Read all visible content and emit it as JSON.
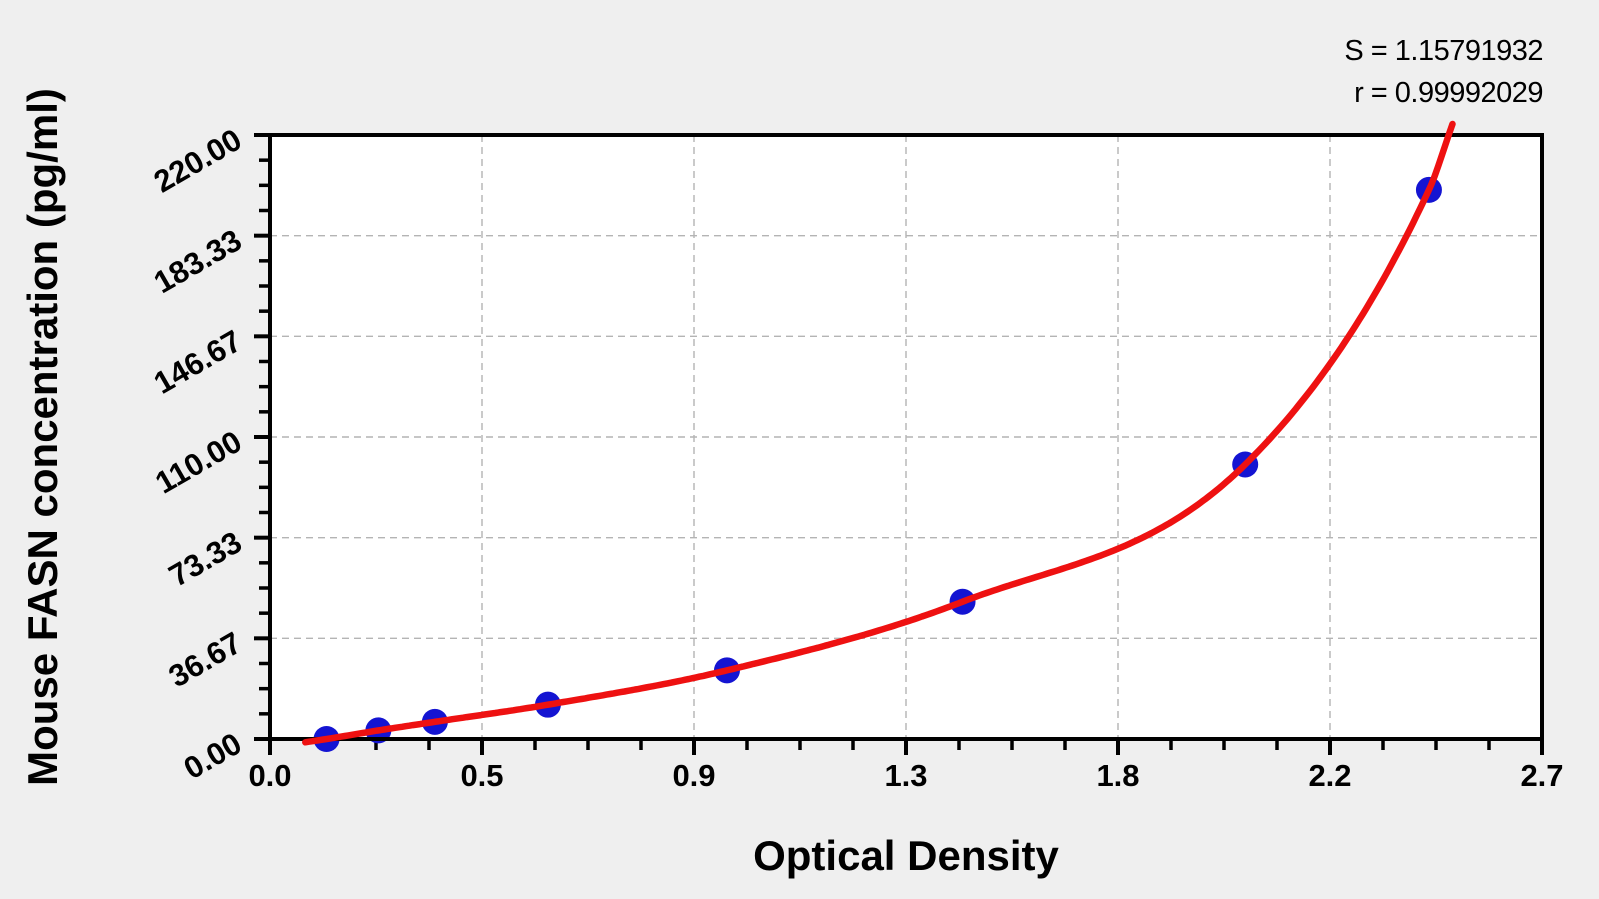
{
  "annotation": {
    "s_line": "S = 1.15791932",
    "r_line": "r = 0.99992029"
  },
  "chart_data": {
    "type": "scatter",
    "title": "",
    "xlabel": "Optical Density",
    "ylabel": "Mouse FASN concentration (pg/ml)",
    "xlim": [
      0,
      2.7
    ],
    "ylim": [
      0,
      220
    ],
    "x_major_ticks": [
      0,
      0.45,
      0.9,
      1.35,
      1.8,
      2.25,
      2.7
    ],
    "x_tick_labels": [
      "0.0",
      "0.5",
      "0.9",
      "1.3",
      "1.8",
      "2.2",
      "2.7"
    ],
    "y_major_ticks": [
      0,
      36.67,
      73.33,
      110.0,
      146.67,
      183.33,
      220.0
    ],
    "y_tick_labels": [
      "0.00",
      "36.67",
      "73.33",
      "110.00",
      "146.67",
      "183.33",
      "220.00"
    ],
    "minor_divisions_per_major": 4,
    "grid": {
      "show": true,
      "style": "dashed",
      "on": "major-ticks-both-axes"
    },
    "legend": "none",
    "series": [
      {
        "name": "standard-points",
        "type": "scatter",
        "color": "#1414d2",
        "x": [
          0.12,
          0.23,
          0.35,
          0.59,
          0.97,
          1.47,
          2.07,
          2.46
        ],
        "y": [
          0,
          3.125,
          6.25,
          12.5,
          25,
          50,
          100,
          200
        ]
      },
      {
        "name": "fitted-curve",
        "type": "line",
        "color": "#ee1111",
        "x": [
          0.075,
          0.12,
          0.23,
          0.35,
          0.59,
          0.97,
          1.47,
          2.07,
          2.46,
          2.51
        ],
        "y": [
          -1.2,
          0,
          3.125,
          6.25,
          12.5,
          25,
          50,
          100,
          200,
          224
        ]
      }
    ],
    "stats": {
      "S": "1.15791932",
      "r": "0.99992029"
    }
  },
  "colors": {
    "background": "#efefef",
    "plot_background": "#ffffff",
    "axis": "#000000",
    "grid": "#b4b4b4",
    "point": "#1414d2",
    "curve": "#ee1111"
  }
}
